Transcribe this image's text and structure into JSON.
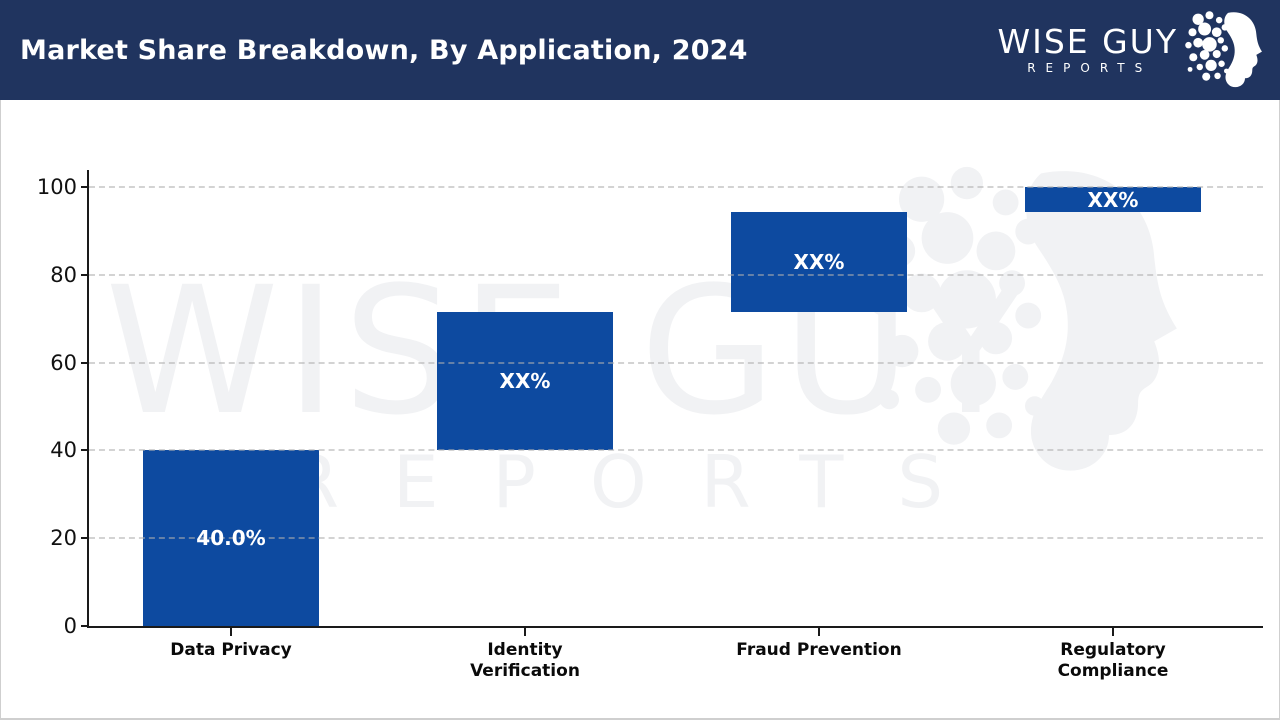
{
  "header": {
    "title": "Market Share Breakdown, By Application, 2024",
    "logo": {
      "line1": "WISE GUY",
      "line2": "REPORTS"
    }
  },
  "watermark": {
    "line1": "WISE GUY",
    "line2": "REPORTS"
  },
  "chart_data": {
    "type": "bar",
    "variant": "waterfall",
    "title": "Market Share Breakdown, By Application, 2024",
    "categories": [
      "Data Privacy",
      "Identity Verification",
      "Fraud Prevention",
      "Regulatory Compliance"
    ],
    "category_label_lines": [
      [
        "Data Privacy"
      ],
      [
        "Identity",
        "Verification"
      ],
      [
        "Fraud Prevention"
      ],
      [
        "Regulatory",
        "Compliance"
      ]
    ],
    "segments": [
      {
        "category": "Data Privacy",
        "start": 0.0,
        "end": 40.0,
        "label": "40.0%"
      },
      {
        "category": "Identity Verification",
        "start": 40.0,
        "end": 71.5,
        "label": "XX%"
      },
      {
        "category": "Fraud Prevention",
        "start": 71.5,
        "end": 94.3,
        "label": "XX%"
      },
      {
        "category": "Regulatory Compliance",
        "start": 94.3,
        "end": 100.0,
        "label": "XX%"
      }
    ],
    "ylim": [
      0,
      100
    ],
    "yticks": [
      0,
      20,
      40,
      60,
      80,
      100
    ],
    "grid": {
      "horizontal": true,
      "style": "dashed"
    },
    "legend": "none",
    "bar_color": "#0d4aa0"
  },
  "colors": {
    "header_bg": "#20345f",
    "bar": "#0d4aa0",
    "grid_line": "#cccccc",
    "axis": "#1a1a1a",
    "bar_label_text": "#ffffff",
    "watermark": "#f1f2f4"
  }
}
